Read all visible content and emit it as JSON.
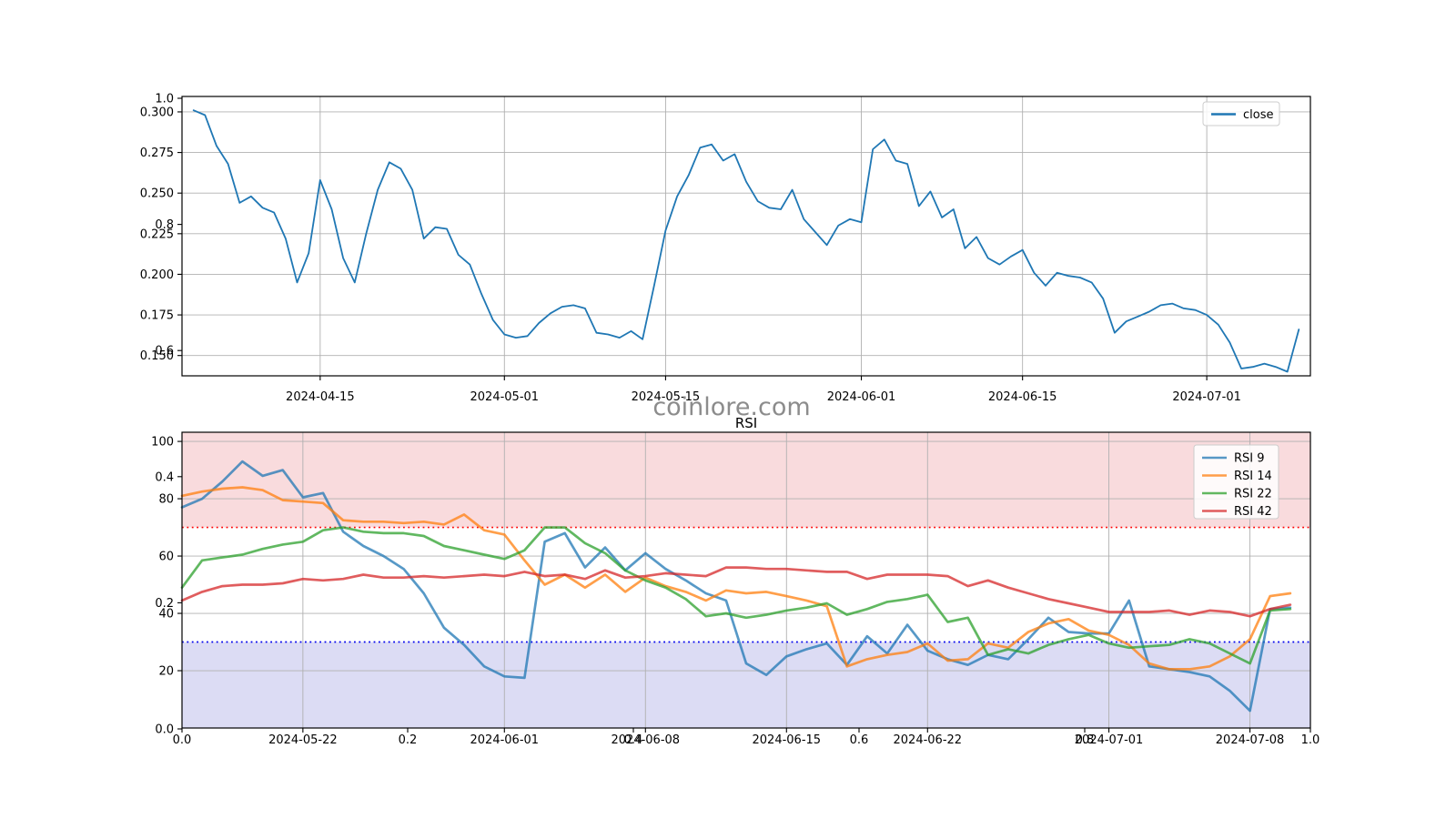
{
  "watermark": "coinlore.com",
  "chart_data": [
    {
      "type": "line",
      "title": "",
      "grid": true,
      "legend": {
        "entries": [
          "close"
        ],
        "position": "upper right"
      },
      "x_start": "2024-04-04",
      "xlim": [
        "2024-04-03",
        "2024-07-10"
      ],
      "ylim": [
        0.1375,
        0.3095
      ],
      "series": [
        {
          "name": "close",
          "color": "#1f77b4",
          "values": [
            0.301,
            0.298,
            0.279,
            0.268,
            0.244,
            0.248,
            0.241,
            0.238,
            0.222,
            0.195,
            0.213,
            0.258,
            0.24,
            0.21,
            0.195,
            0.225,
            0.252,
            0.269,
            0.265,
            0.252,
            0.222,
            0.229,
            0.228,
            0.212,
            0.206,
            0.188,
            0.172,
            0.163,
            0.161,
            0.162,
            0.17,
            0.176,
            0.18,
            0.181,
            0.179,
            0.164,
            0.163,
            0.161,
            0.165,
            0.16,
            0.193,
            0.227,
            0.248,
            0.261,
            0.278,
            0.28,
            0.27,
            0.274,
            0.257,
            0.245,
            0.241,
            0.24,
            0.252,
            0.234,
            0.226,
            0.218,
            0.23,
            0.234,
            0.232,
            0.277,
            0.283,
            0.27,
            0.268,
            0.242,
            0.251,
            0.235,
            0.24,
            0.216,
            0.223,
            0.21,
            0.206,
            0.211,
            0.215,
            0.201,
            0.193,
            0.201,
            0.199,
            0.198,
            0.195,
            0.185,
            0.164,
            0.171,
            0.174,
            0.177,
            0.181,
            0.182,
            0.179,
            0.178,
            0.175,
            0.169,
            0.158,
            0.142,
            0.143,
            0.145,
            0.143,
            0.14,
            0.166
          ]
        }
      ],
      "yticks": {
        "values": [
          0.3,
          0.275,
          0.25,
          0.225,
          0.2,
          0.175,
          0.15
        ],
        "labels": [
          "0.300",
          "0.275",
          "0.250",
          "0.225",
          "0.200",
          "0.175",
          "0.150"
        ]
      },
      "xticks": {
        "dates": [
          "2024-04-15",
          "2024-05-01",
          "2024-05-15",
          "2024-06-01",
          "2024-06-15",
          "2024-07-01"
        ],
        "labels": [
          "2024-04-15",
          "2024-05-01",
          "2024-05-15",
          "2024-06-01",
          "2024-06-15",
          "2024-07-01"
        ]
      }
    },
    {
      "type": "line",
      "title": "RSI",
      "grid": true,
      "legend": {
        "entries": [
          "RSI 9",
          "RSI 14",
          "RSI 22",
          "RSI 42"
        ],
        "position": "upper right"
      },
      "x_start": "2024-05-16",
      "xlim": [
        "2024-05-16",
        "2024-07-11"
      ],
      "ylim": [
        0,
        103.2
      ],
      "bands": [
        {
          "name": "overbought-band",
          "from": 70,
          "to": 103.2,
          "color": "#f9dbdd"
        },
        {
          "name": "oversold-band",
          "from": 0,
          "to": 30,
          "color": "#dcdcf4"
        }
      ],
      "hlines": [
        {
          "name": "overbought-line",
          "y": 70,
          "color": "#ff0000",
          "style": "dotted"
        },
        {
          "name": "oversold-line",
          "y": 30,
          "color": "#0000ee",
          "style": "dotted"
        }
      ],
      "series": [
        {
          "name": "RSI 9",
          "color": "#1f77b4",
          "values": [
            77,
            80,
            86,
            93,
            88,
            90,
            80.5,
            82,
            68.5,
            63.5,
            60,
            55.5,
            47,
            35,
            29,
            21.5,
            18,
            17.5,
            65,
            68,
            56,
            63,
            55,
            61,
            55.5,
            51.5,
            47,
            44.5,
            22.5,
            18.5,
            25,
            27.5,
            29.5,
            22,
            32,
            26,
            36,
            27,
            24,
            22,
            25.5,
            24,
            31,
            38.5,
            33.5,
            33,
            33,
            44.5,
            21.5,
            20.5,
            19.5,
            18,
            13,
            6,
            41.5,
            42
          ]
        },
        {
          "name": "RSI 14",
          "color": "#ff7f0e",
          "values": [
            81,
            82.5,
            83.5,
            84,
            83,
            79.5,
            79,
            78.5,
            72.5,
            72,
            72,
            71.5,
            72,
            71,
            74.5,
            69,
            67.5,
            58.5,
            50,
            53.5,
            49,
            53.5,
            47.5,
            52.5,
            49.5,
            47.5,
            44.5,
            48,
            47,
            47.5,
            46,
            44.5,
            42.5,
            21.5,
            24,
            25.5,
            26.5,
            29.5,
            23.5,
            24,
            29.5,
            28,
            33.5,
            36.5,
            38,
            34,
            32.5,
            29,
            22.5,
            20.5,
            20.5,
            21.5,
            25,
            31,
            46,
            47
          ]
        },
        {
          "name": "RSI 22",
          "color": "#2ca02c",
          "values": [
            49,
            58.5,
            59.5,
            60.5,
            62.5,
            64,
            65,
            69,
            70,
            68.5,
            68,
            68,
            67,
            63.5,
            62,
            60.5,
            59,
            62,
            70,
            70,
            64.5,
            61,
            55,
            51.5,
            49,
            45,
            39,
            40,
            38.5,
            39.5,
            41,
            42,
            43.5,
            39.5,
            41.5,
            44,
            45,
            46.5,
            37,
            38.5,
            25.5,
            27.5,
            26,
            29,
            31,
            32.5,
            29.5,
            28,
            28.5,
            29,
            31,
            29.5,
            26,
            22.5,
            41,
            41.5
          ]
        },
        {
          "name": "RSI 42",
          "color": "#d62728",
          "values": [
            44.5,
            47.5,
            49.5,
            50,
            50,
            50.5,
            52,
            51.5,
            52,
            53.5,
            52.5,
            52.5,
            53,
            52.5,
            53,
            53.5,
            53,
            54.5,
            53,
            53.5,
            52,
            55,
            52.5,
            53,
            54,
            53.5,
            53,
            56,
            56,
            55.5,
            55.5,
            55,
            54.5,
            54.5,
            52,
            53.5,
            53.5,
            53.5,
            53,
            49.5,
            51.5,
            49,
            47,
            45,
            43.5,
            42,
            40.5,
            40.5,
            40.5,
            41,
            39.5,
            41,
            40.5,
            39,
            41.5,
            43
          ]
        }
      ],
      "yticks": {
        "values": [
          100,
          80,
          60,
          40,
          20
        ],
        "labels": [
          "100",
          "80",
          "60",
          "40",
          "20"
        ]
      },
      "xticks": {
        "dates": [
          "2024-05-22",
          "2024-06-01",
          "2024-06-08",
          "2024-06-15",
          "2024-06-22",
          "2024-07-01",
          "2024-07-08"
        ],
        "labels": [
          "2024-05-22",
          "2024-06-01",
          "2024-06-08",
          "2024-06-15",
          "2024-06-22",
          "2024-07-01",
          "2024-07-08"
        ]
      }
    }
  ],
  "overlay_axis": {
    "yticks": [
      "1.0",
      "0.8",
      "0.6",
      "0.4",
      "0.2",
      "0.0"
    ],
    "xticks": [
      "0.0",
      "0.2",
      "0.4",
      "0.6",
      "0.8",
      "1.0"
    ]
  },
  "colors": {
    "grid": "#b0b0b0",
    "border": "#000000",
    "tick_text": "#000000",
    "watermark": "#8c8c8c",
    "legend_border": "#cccccc"
  }
}
